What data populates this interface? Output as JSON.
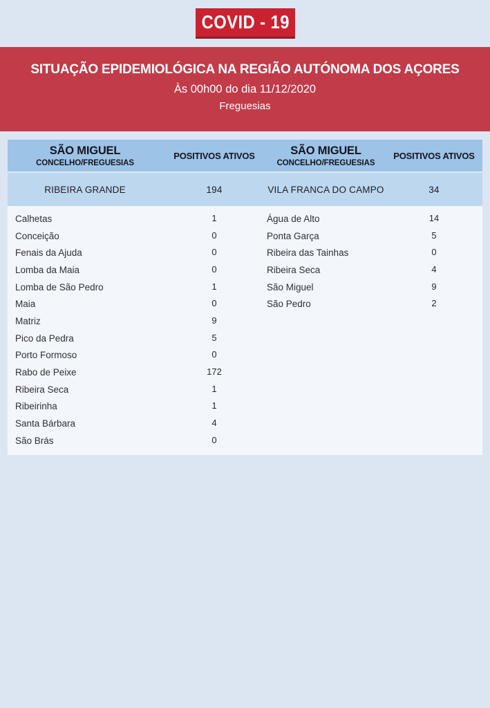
{
  "logo": {
    "text": "COVID - 19"
  },
  "banner": {
    "title": "SITUAÇÃO EPIDEMIOLÓGICA NA REGIÃO AUTÓNOMA DOS AÇORES",
    "subtitle": "Às 00h00 do dia 11/12/2020",
    "level": "Freguesias"
  },
  "colors": {
    "page_bg": "#dce6f2",
    "logo_red": "#cb2231",
    "banner_red": "#c23b49",
    "header_blue": "#9dc3e6",
    "subheader_blue": "#bdd7ee",
    "body_bg": "#f3f7fb",
    "header_text": "#14151e",
    "body_text": "#2e2f36"
  },
  "table": {
    "left": {
      "island": "SÃO MIGUEL",
      "col_label": "CONCELHO/FREGUESIAS",
      "value_label": "POSITIVOS ATIVOS",
      "concelho": "RIBEIRA GRANDE",
      "concelho_value": "194",
      "rows": [
        {
          "name": "Calhetas",
          "value": "1"
        },
        {
          "name": "Conceição",
          "value": "0"
        },
        {
          "name": "Fenais da Ajuda",
          "value": "0"
        },
        {
          "name": "Lomba da Maia",
          "value": "0"
        },
        {
          "name": "Lomba de São Pedro",
          "value": "1"
        },
        {
          "name": "Maia",
          "value": "0"
        },
        {
          "name": "Matriz",
          "value": "9"
        },
        {
          "name": "Pico da Pedra",
          "value": "5"
        },
        {
          "name": "Porto Formoso",
          "value": "0"
        },
        {
          "name": "Rabo de Peixe",
          "value": "172"
        },
        {
          "name": "Ribeira Seca",
          "value": "1"
        },
        {
          "name": "Ribeirinha",
          "value": "1"
        },
        {
          "name": "Santa Bárbara",
          "value": "4"
        },
        {
          "name": "São Brás",
          "value": "0"
        }
      ]
    },
    "right": {
      "island": "SÃO MIGUEL",
      "col_label": "CONCELHO/FREGUESIAS",
      "value_label": "POSITIVOS ATIVOS",
      "concelho": "VILA FRANCA DO CAMPO",
      "concelho_value": "34",
      "rows": [
        {
          "name": "Água de Alto",
          "value": "14"
        },
        {
          "name": "Ponta Garça",
          "value": "5"
        },
        {
          "name": "Ribeira das Tainhas",
          "value": "0"
        },
        {
          "name": "Ribeira Seca",
          "value": "4"
        },
        {
          "name": "São Miguel",
          "value": "9"
        },
        {
          "name": "São Pedro",
          "value": "2"
        }
      ]
    }
  }
}
